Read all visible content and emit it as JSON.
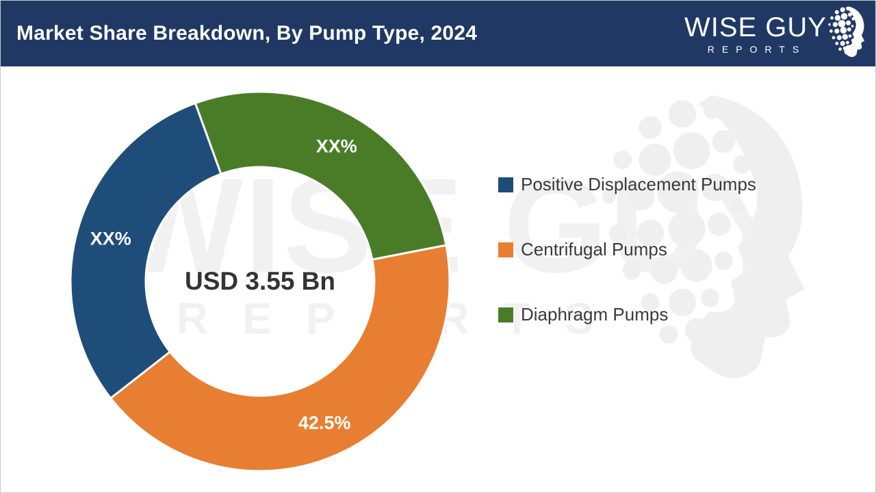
{
  "header": {
    "title": "Market Share Breakdown, By Pump Type, 2024",
    "logo_line1": "WISE GUY",
    "logo_line2": "REPORTS"
  },
  "chart_data": {
    "type": "pie",
    "donut": true,
    "title": "Market Share Breakdown, By Pump Type, 2024",
    "center_label": "USD 3.55 Bn",
    "start_angle_deg": -20,
    "legend_position": "right",
    "slices": [
      {
        "label": "Diaphragm Pumps",
        "value_pct": 27.5,
        "display": "XX%",
        "color": "#4a7c28"
      },
      {
        "label": "Centrifugal Pumps",
        "value_pct": 42.5,
        "display": "42.5%",
        "color": "#e87e31"
      },
      {
        "label": "Positive Displacement Pumps",
        "value_pct": 30,
        "display": "XX%",
        "color": "#1f4d7a"
      }
    ]
  },
  "legend": {
    "items": [
      {
        "label": "Positive Displacement Pumps",
        "color": "#1f4d7a"
      },
      {
        "label": "Centrifugal Pumps",
        "color": "#e87e31"
      },
      {
        "label": "Diaphragm Pumps",
        "color": "#4a7c28"
      }
    ]
  },
  "watermark": {
    "line1": "WISE GUY",
    "line2": "REPORTS"
  },
  "colors": {
    "header_bg": "#203864",
    "center_text": "#333333",
    "legend_text": "#3a3a3a",
    "watermark": "#f1f1f1"
  }
}
